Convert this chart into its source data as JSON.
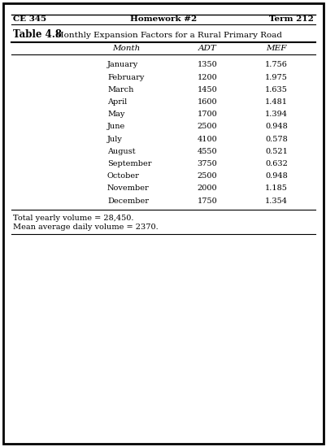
{
  "header_left": "CE 345",
  "header_center": "Homework #2",
  "header_right": "Term 212",
  "table_title_bold": "Table 4.8",
  "table_title_normal": "Monthly Expansion Factors for a Rural Primary Road",
  "col_headers": [
    "Month",
    "ADT",
    "MEF"
  ],
  "months": [
    "January",
    "February",
    "March",
    "April",
    "May",
    "June",
    "July",
    "August",
    "September",
    "October",
    "November",
    "December"
  ],
  "adt": [
    "1350",
    "1200",
    "1450",
    "1600",
    "1700",
    "2500",
    "4100",
    "4550",
    "3750",
    "2500",
    "2000",
    "1750"
  ],
  "mef": [
    "1.756",
    "1.975",
    "1.635",
    "1.481",
    "1.394",
    "0.948",
    "0.578",
    "0.521",
    "0.632",
    "0.948",
    "1.185",
    "1.354"
  ],
  "footer1": "Total yearly volume = 28,450.",
  "footer2": "Mean average daily volume = 2370.",
  "bg_color": "#ffffff",
  "text_color": "#000000"
}
